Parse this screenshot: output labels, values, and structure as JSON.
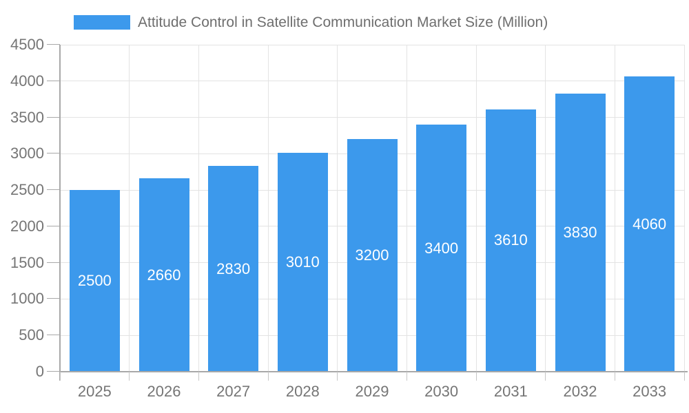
{
  "chart_data": {
    "type": "bar",
    "title": "Attitude Control in Satellite Communication Market Size (Million)",
    "legend_entries": [
      "Attitude Control in Satellite Communication Market Size (Million)"
    ],
    "legend_position": "top",
    "categories": [
      "2025",
      "2026",
      "2027",
      "2028",
      "2029",
      "2030",
      "2031",
      "2032",
      "2033"
    ],
    "values": [
      2500,
      2660,
      2830,
      3010,
      3200,
      3400,
      3610,
      3830,
      4060
    ],
    "value_labels": [
      "2500",
      "2660",
      "2830",
      "3010",
      "3200",
      "3400",
      "3610",
      "3830",
      "4060"
    ],
    "value_label_position": "inside-center",
    "xlabel": "",
    "ylabel": "",
    "ylim": [
      0,
      4500
    ],
    "yticks": [
      0,
      500,
      1000,
      1500,
      2000,
      2500,
      3000,
      3500,
      4000,
      4500
    ],
    "grid": true,
    "colors": {
      "bar": "#3C99EC",
      "grid": "#e3e3e3",
      "axis": "#a8a8a8",
      "tick_label": "#757575",
      "legend_text": "#6e6e6e",
      "value_label": "#ffffff",
      "background": "#ffffff"
    }
  }
}
